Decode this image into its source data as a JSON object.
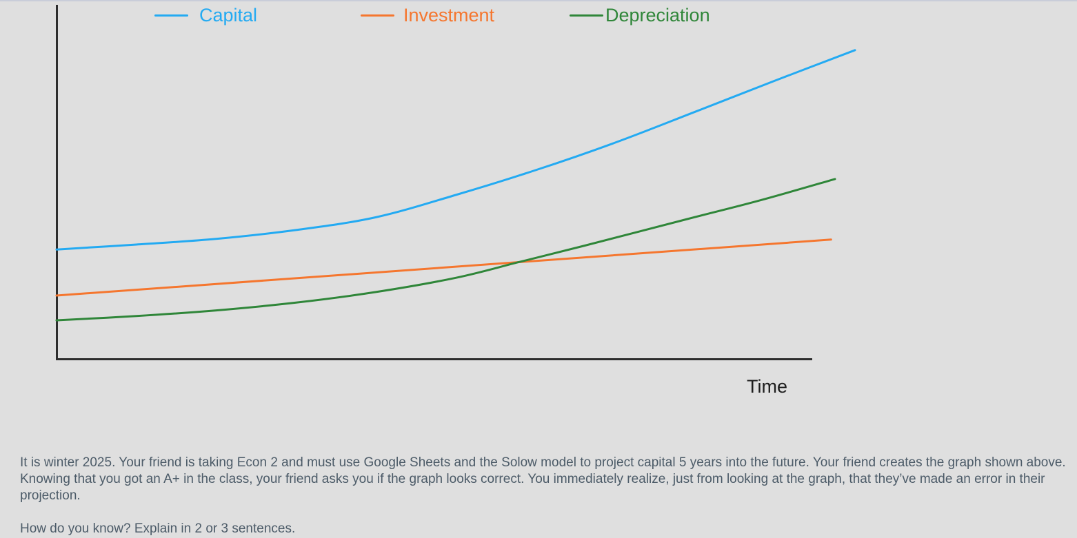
{
  "page": {
    "background_color": "#dfdfdf",
    "top_border_color": "#c9cdd9"
  },
  "chart_data": {
    "type": "line",
    "title": "",
    "xlabel": "Time",
    "ylabel": "",
    "x_range": [
      0,
      100
    ],
    "y_range": [
      0,
      100
    ],
    "grid": false,
    "legend_position": "top",
    "axis_color": "#2d2d2d",
    "series": [
      {
        "name": "Capital",
        "color": "#23aaf2",
        "points": [
          [
            0,
            30.9
          ],
          [
            10,
            32.3
          ],
          [
            20,
            33.9
          ],
          [
            30,
            36.4
          ],
          [
            40,
            40.0
          ],
          [
            50,
            46.3
          ],
          [
            60,
            53.3
          ],
          [
            70,
            61.1
          ],
          [
            80,
            69.8
          ],
          [
            90,
            78.6
          ],
          [
            100,
            87.2
          ]
        ]
      },
      {
        "name": "Investment",
        "color": "#f5762e",
        "points": [
          [
            0,
            17.9
          ],
          [
            97,
            33.7
          ]
        ]
      },
      {
        "name": "Depreciation",
        "color": "#2f8639",
        "points": [
          [
            0,
            10.9
          ],
          [
            10,
            12.1
          ],
          [
            20,
            13.7
          ],
          [
            30,
            15.9
          ],
          [
            40,
            18.9
          ],
          [
            50,
            22.9
          ],
          [
            58,
            27.4
          ],
          [
            66,
            31.9
          ],
          [
            79,
            39.5
          ],
          [
            88,
            44.7
          ],
          [
            97.5,
            50.8
          ]
        ]
      }
    ]
  },
  "question": {
    "paragraph": "It is winter 2025. Your friend is taking Econ 2 and must use Google Sheets and the Solow model to project capital 5 years into the future. Your friend creates the graph shown above. Knowing that you got an A+ in the class, your friend asks you if the graph looks correct. You immediately realize, just from looking at the graph, that they’ve made an error in their projection.",
    "prompt": "How do you know? Explain in 2 or 3 sentences."
  }
}
